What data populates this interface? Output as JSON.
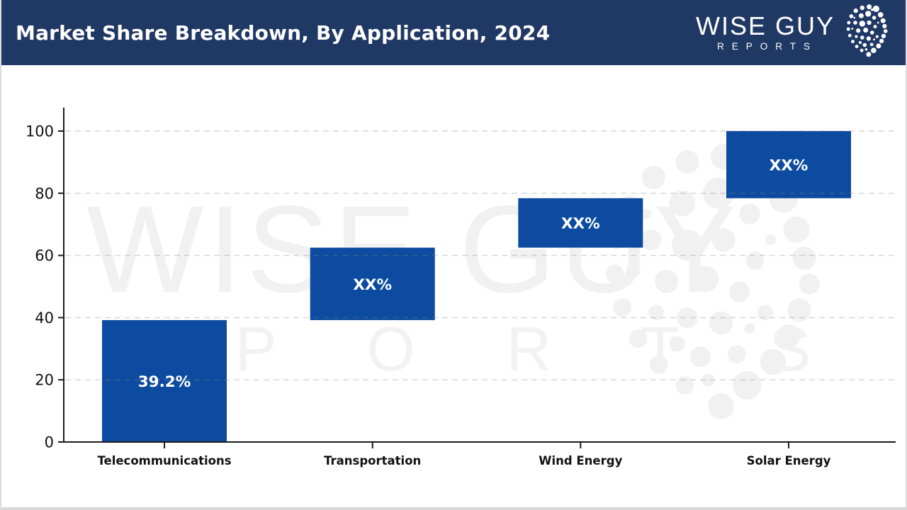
{
  "header": {
    "title": "Market Share Breakdown, By Application, 2024",
    "logo": {
      "line1": "WISE GUY",
      "line2": "REPORTS"
    }
  },
  "watermark": {
    "line1": "WISE GUY",
    "line2": "P O R T S"
  },
  "colors": {
    "header_bg": "#1f3864",
    "bar": "#0c4b9f",
    "bar_label": "#ffffff",
    "axis": "#1a1a1a",
    "gridline": "#888888",
    "watermark": "#f1f1f1"
  },
  "chart_data": {
    "type": "bar",
    "subtype": "waterfall-floating-bars",
    "title": "Market Share Breakdown, By Application, 2024",
    "categories": [
      "Telecommunications",
      "Transportation",
      "Wind Energy",
      "Solar Energy"
    ],
    "segments": [
      {
        "category": "Telecommunications",
        "start": 0,
        "end": 39.2,
        "label": "39.2%"
      },
      {
        "category": "Transportation",
        "start": 39.2,
        "end": 62.5,
        "label": "XX%"
      },
      {
        "category": "Wind Energy",
        "start": 62.5,
        "end": 78.4,
        "label": "XX%"
      },
      {
        "category": "Solar Energy",
        "start": 78.4,
        "end": 100,
        "label": "XX%"
      }
    ],
    "yticks": [
      0,
      20,
      40,
      60,
      80,
      100
    ],
    "ylim": [
      0,
      107
    ],
    "xlabel": "",
    "ylabel": "",
    "grid": "horizontal-dashed",
    "legend": "none"
  }
}
